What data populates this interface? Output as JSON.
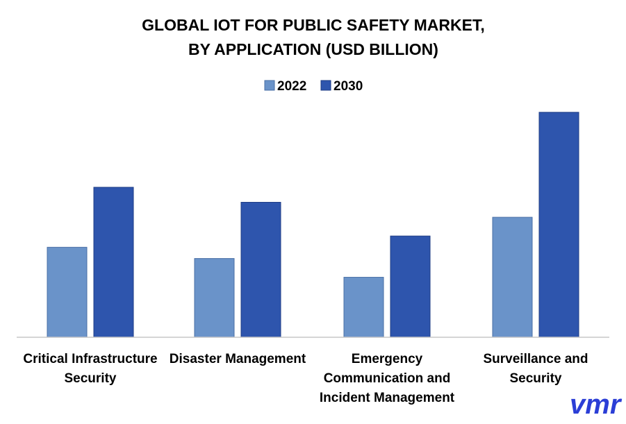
{
  "chart_data": {
    "type": "bar",
    "title": "GLOBAL IOT FOR PUBLIC SAFETY MARKET,",
    "subtitle": "BY APPLICATION (USD BILLION)",
    "categories": [
      [
        "Critical Infrastructure",
        "Security"
      ],
      [
        "Disaster Management"
      ],
      [
        "Emergency",
        "Communication and",
        "Incident Management"
      ],
      [
        "Surveillance and",
        "Security"
      ]
    ],
    "series": [
      {
        "name": "2022",
        "color": "#6a93c9",
        "values": [
          2.4,
          2.1,
          1.6,
          3.2
        ]
      },
      {
        "name": "2030",
        "color": "#2e55ad",
        "values": [
          4.0,
          3.6,
          2.7,
          6.0
        ]
      }
    ],
    "ylim": [
      0,
      6.2
    ],
    "grid": false,
    "legend_position": "top-center",
    "xlabel": "",
    "ylabel": ""
  },
  "logo": {
    "text": "vmr",
    "color": "#2b3ed6"
  }
}
